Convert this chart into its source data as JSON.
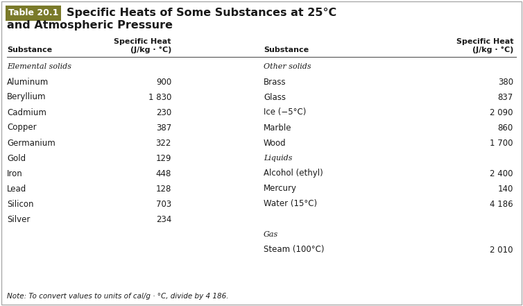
{
  "table_label": "Table 20.1",
  "table_label_bg": "#7a7a2a",
  "title_line1": "Specific Heats of Some Substances at 25°C",
  "title_line2": "and Atmospheric Pressure",
  "left_category": "Elemental solids",
  "right_category1": "Other solids",
  "right_category2": "Liquids",
  "right_category3": "Gas",
  "left_substances": [
    "Aluminum",
    "Beryllium",
    "Cadmium",
    "Copper",
    "Germanium",
    "Gold",
    "Iron",
    "Lead",
    "Silicon",
    "Silver"
  ],
  "left_values": [
    "900",
    "1 830",
    "230",
    "387",
    "322",
    "129",
    "448",
    "128",
    "703",
    "234"
  ],
  "right_substances_group1": [
    "Brass",
    "Glass",
    "Ice (−5°C)",
    "Marble",
    "Wood"
  ],
  "right_values_group1": [
    "380",
    "837",
    "2 090",
    "860",
    "1 700"
  ],
  "right_substances_group2": [
    "Alcohol (ethyl)",
    "Mercury",
    "Water (15°C)"
  ],
  "right_values_group2": [
    "2 400",
    "140",
    "4 186"
  ],
  "right_substances_group3": [
    "Steam (100°C)"
  ],
  "right_values_group3": [
    "2 010"
  ],
  "note": "Note: To convert values to units of cal/g · °C, divide by 4 186.",
  "bg_color": "#ffffff",
  "border_color": "#aaaaaa",
  "header_line_color": "#555555",
  "text_color": "#1a1a1a"
}
